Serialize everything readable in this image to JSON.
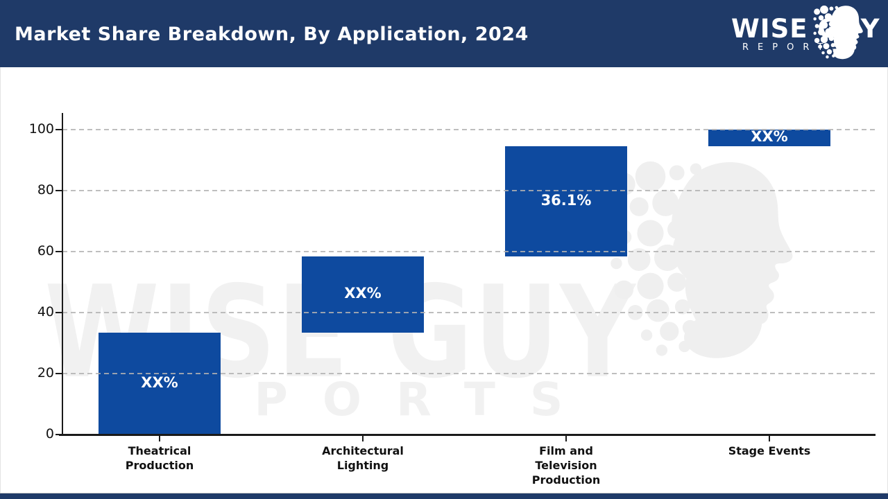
{
  "header": {
    "title": "Market Share Breakdown, By Application, 2024",
    "bg_color": "#1f3a68",
    "text_color": "#ffffff",
    "brand": {
      "line1": "WISE GUY",
      "line2": "REPORTS"
    }
  },
  "watermark": {
    "line1": "WISE GUY",
    "line2": "REPORTS"
  },
  "footer": {
    "bg_color": "#1f3a68"
  },
  "chart_data": {
    "type": "bar",
    "variant": "waterfall",
    "title": "Market Share Breakdown, By Application, 2024",
    "categories": [
      {
        "label": "Theatrical Production",
        "lines": [
          "Theatrical",
          "Production"
        ],
        "start": 0,
        "end": 33.4,
        "increment": 33.4,
        "bar_label": "XX%"
      },
      {
        "label": "Architectural Lighting",
        "lines": [
          "Architectural",
          "Lighting"
        ],
        "start": 33.4,
        "end": 58.4,
        "increment": 25.0,
        "bar_label": "XX%"
      },
      {
        "label": "Film and Television Production",
        "lines": [
          "Film and",
          "Television",
          "Production"
        ],
        "start": 58.4,
        "end": 94.5,
        "increment": 36.1,
        "bar_label": "36.1%"
      },
      {
        "label": "Stage Events",
        "lines": [
          "Stage Events"
        ],
        "start": 94.5,
        "end": 100,
        "increment": 5.5,
        "bar_label": "XX%"
      }
    ],
    "yticks": [
      0,
      20,
      40,
      60,
      80,
      100
    ],
    "ylim": [
      0,
      100
    ],
    "grid": {
      "axis": "y",
      "style": "dashed",
      "drawn_over_bars": true
    },
    "legend": "none",
    "colors": {
      "bar": "#0e4a9f",
      "bar_label": "#ffffff",
      "grid": "#b2b2b2",
      "axis": "#1a1a1a",
      "tick_label": "#111111"
    }
  }
}
